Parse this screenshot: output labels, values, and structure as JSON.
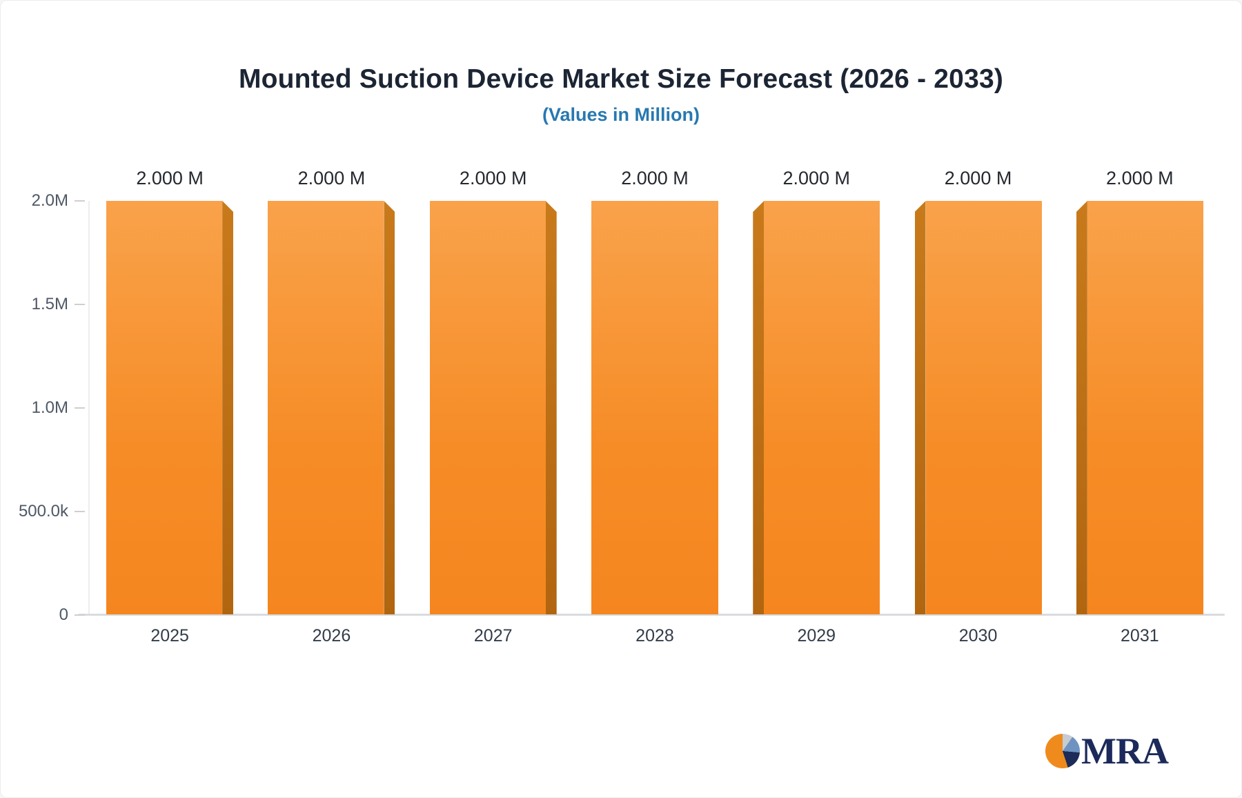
{
  "header": {
    "title": "Mounted Suction Device Market Size Forecast (2026 - 2033)",
    "subtitle": "(Values in Million)"
  },
  "chart_data": {
    "type": "bar",
    "title": "Mounted Suction Device Market Size Forecast (2026 - 2033)",
    "subtitle": "(Values in Million)",
    "categories": [
      "2025",
      "2026",
      "2027",
      "2028",
      "2029",
      "2030",
      "2031"
    ],
    "values": [
      2000000,
      2000000,
      2000000,
      2000000,
      2000000,
      2000000,
      2000000
    ],
    "bar_labels": [
      "2.000 M",
      "2.000 M",
      "2.000 M",
      "2.000 M",
      "2.000 M",
      "2.000 M",
      "2.000 M"
    ],
    "xlabel": "",
    "ylabel": "",
    "ylim": [
      0,
      2000000
    ],
    "y_ticks": [
      {
        "label": "2.0M",
        "value": 2000000
      },
      {
        "label": "1.5M",
        "value": 1500000
      },
      {
        "label": "1.0M",
        "value": 1000000
      },
      {
        "label": "500.0k",
        "value": 500000
      },
      {
        "label": "0",
        "value": 0
      }
    ],
    "grid": false,
    "legend": "none",
    "colors": {
      "bar_top": "#f9a24b",
      "bar_bottom": "#f5861f",
      "bar_side": "#b1650f",
      "axis_line": "#d9dbdf",
      "tick_text": "#4e5866",
      "value_text": "#24292f",
      "title_text": "#1c2534",
      "subtitle_text": "#2878b0"
    }
  },
  "logo": {
    "text": "MRA",
    "colors": {
      "navy": "#1b2a5a",
      "orange": "#ef8b1d",
      "blue": "#6e93c0",
      "gray": "#c7ccd3"
    }
  }
}
